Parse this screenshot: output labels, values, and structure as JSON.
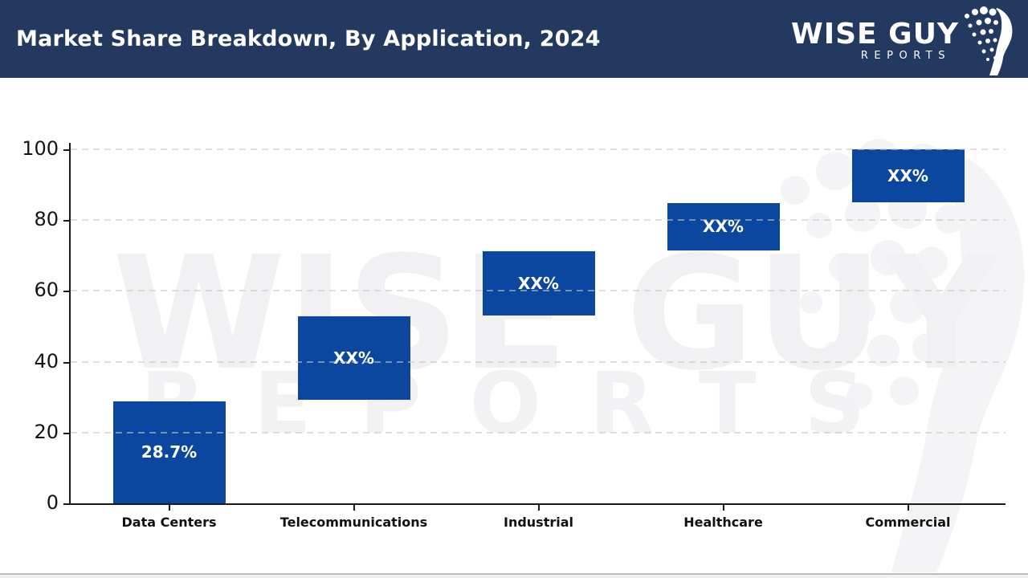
{
  "header": {
    "title": "Market Share Breakdown, By Application, 2024",
    "logo": {
      "line1": "WISE GUY",
      "line2": "REPORTS"
    }
  },
  "watermark": {
    "line1": "WISE GUY",
    "line2": "REPORTS"
  },
  "colors": {
    "header_bg": "#233960",
    "bar": "#0b469f",
    "bar_label": "#ffffff",
    "axis": "#1a1a1a",
    "gridline": "#d9d9d9"
  },
  "chart_data": {
    "type": "bar",
    "subtype": "waterfall-floating-bars",
    "title": "Market Share Breakdown, By Application, 2024",
    "categories": [
      "Data Centers",
      "Telecommunications",
      "Industrial",
      "Healthcare",
      "Commercial"
    ],
    "segments": [
      {
        "category": "Data Centers",
        "start": 0,
        "end": 28.7,
        "label": "28.7%"
      },
      {
        "category": "Telecommunications",
        "start": 29.2,
        "end": 52.8,
        "label": "XX%"
      },
      {
        "category": "Industrial",
        "start": 53.0,
        "end": 71.2,
        "label": "XX%"
      },
      {
        "category": "Healthcare",
        "start": 71.4,
        "end": 84.8,
        "label": "XX%"
      },
      {
        "category": "Commercial",
        "start": 85.0,
        "end": 100,
        "label": "XX%"
      }
    ],
    "xlabel": "",
    "ylabel": "",
    "ylim": [
      0,
      100
    ],
    "yticks": [
      0,
      20,
      40,
      60,
      80,
      100
    ],
    "grid": "horizontal-dashed, drawn above bars",
    "legend": "none"
  }
}
